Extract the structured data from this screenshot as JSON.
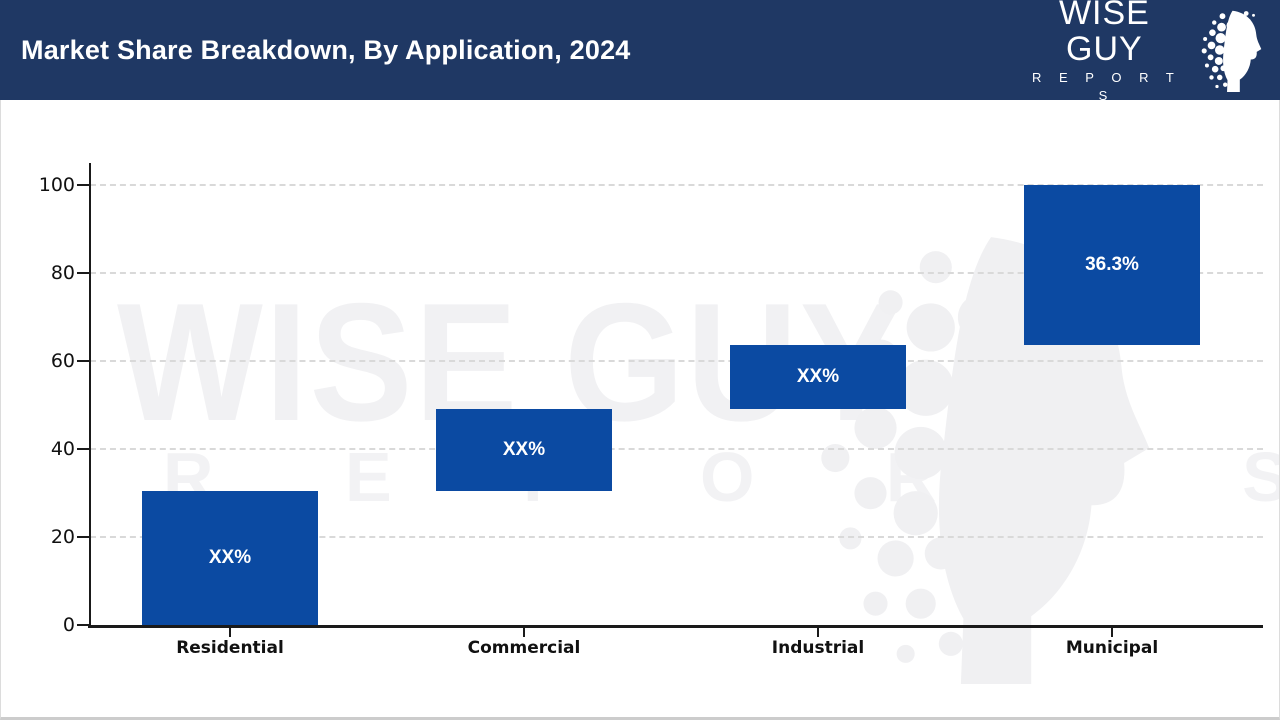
{
  "header": {
    "title": "Market Share Breakdown, By Application, 2024",
    "bg_color": "#1f3864",
    "logo": {
      "line1": "WISE GUY",
      "line2": "R E P O R T S"
    }
  },
  "watermark": {
    "line1": "WISE GUY",
    "line2": "R E P O R T S"
  },
  "chart_data": {
    "type": "bar",
    "subtype": "floating-segment (waterfall-style market share breakdown)",
    "title": "Market Share Breakdown, By Application, 2024",
    "categories": [
      "Residential",
      "Commercial",
      "Industrial",
      "Municipal"
    ],
    "series": [
      {
        "name": "Market share (%)",
        "segments": [
          {
            "from": 0,
            "to": 30.5
          },
          {
            "from": 30.5,
            "to": 49.0
          },
          {
            "from": 49.0,
            "to": 63.7
          },
          {
            "from": 63.7,
            "to": 100
          }
        ],
        "values": [
          30.5,
          18.5,
          14.7,
          36.3
        ]
      }
    ],
    "bar_labels": [
      "XX%",
      "XX%",
      "XX%",
      "36.3%"
    ],
    "xlabel": "",
    "ylabel": "",
    "yticks": [
      0,
      20,
      40,
      60,
      80,
      100
    ],
    "ylim": [
      0,
      104.5
    ],
    "grid": {
      "horizontal": true,
      "style": "dashed",
      "color": "#d9d9d9"
    },
    "legend_position": "none",
    "bar_color": "#0b4aa2",
    "bar_label_color": "#ffffff",
    "axis_color": "#1a1a1a"
  }
}
